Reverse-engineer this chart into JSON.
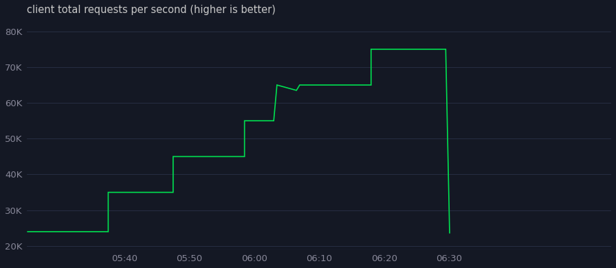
{
  "title": "client total requests per second (higher is better)",
  "title_color": "#c8c8c8",
  "bg_color": "#141824",
  "plot_bg_color": "#141824",
  "grid_color": "#2a3248",
  "line_color": "#00e050",
  "line_width": 1.2,
  "ylim": [
    19000,
    83000
  ],
  "xlim": [
    325.0,
    415.0
  ],
  "x_tick_positions": [
    340,
    350,
    360,
    370,
    380,
    390
  ],
  "x_tick_labels": [
    "05:40",
    "05:50",
    "06:00",
    "06:10",
    "06:20",
    "06:30"
  ],
  "y_ticks": [
    20000,
    30000,
    40000,
    50000,
    60000,
    70000,
    80000
  ],
  "y_tick_labels": [
    "20K",
    "30K",
    "40K",
    "50K",
    "60K",
    "70K",
    "80K"
  ],
  "data_x": [
    325.0,
    337.5,
    337.5,
    347.5,
    347.5,
    352.0,
    352.0,
    358.5,
    358.5,
    363.0,
    363.5,
    363.5,
    366.5,
    367.0,
    367.0,
    378.0,
    378.0,
    389.5,
    389.5,
    390.1,
    390.1
  ],
  "data_y": [
    24000,
    24000,
    35000,
    35000,
    45000,
    45000,
    45000,
    45000,
    55000,
    55000,
    65000,
    65000,
    63500,
    65000,
    65000,
    65000,
    75000,
    75000,
    75000,
    23500,
    23500
  ]
}
